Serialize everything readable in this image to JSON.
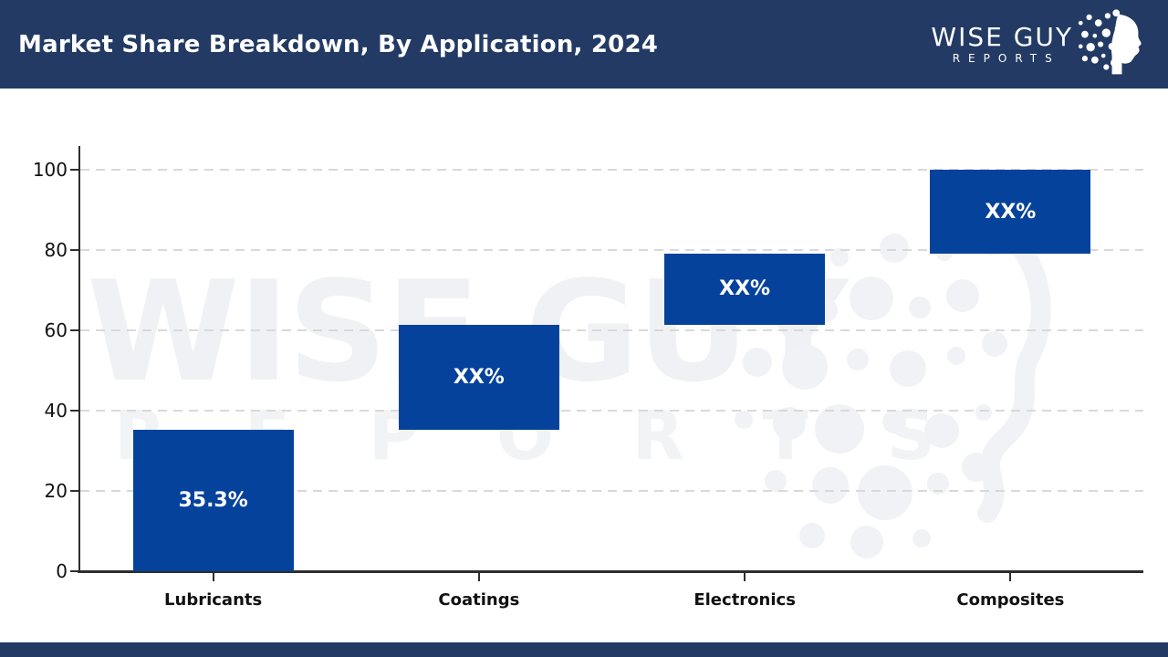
{
  "header": {
    "title": "Market Share Breakdown, By Application, 2024",
    "logo_line1": "WISE GUY",
    "logo_line2": "REPORTS"
  },
  "watermark": {
    "line1": "WISE GUY",
    "line2": "R E P O R T S"
  },
  "chart_data": {
    "type": "bar",
    "variant": "waterfall",
    "title": "Market Share Breakdown, By Application, 2024",
    "categories": [
      "Lubricants",
      "Coatings",
      "Electronics",
      "Composites"
    ],
    "segments": [
      {
        "category": "Lubricants",
        "start": 0,
        "end": 35.3,
        "label": "35.3%"
      },
      {
        "category": "Coatings",
        "start": 35.3,
        "end": 61.5,
        "label": "XX%"
      },
      {
        "category": "Electronics",
        "start": 61.5,
        "end": 79.2,
        "label": "XX%"
      },
      {
        "category": "Composites",
        "start": 79.2,
        "end": 100,
        "label": "XX%"
      }
    ],
    "yticks": [
      0,
      20,
      40,
      60,
      80,
      100
    ],
    "ylim": [
      0,
      106
    ],
    "grid": {
      "axis": "y",
      "style": "dashed",
      "color": "#d9d9d9"
    },
    "bar_color": "#05429b",
    "bar_label_color": "#ffffff",
    "xlabel": "",
    "ylabel": "",
    "legend": null
  },
  "colors": {
    "header_bg": "#223a64",
    "footer_bg": "#223a64",
    "axis": "#2e2e2e",
    "tick_label": "#111111",
    "watermark": "#f0f1f4"
  }
}
